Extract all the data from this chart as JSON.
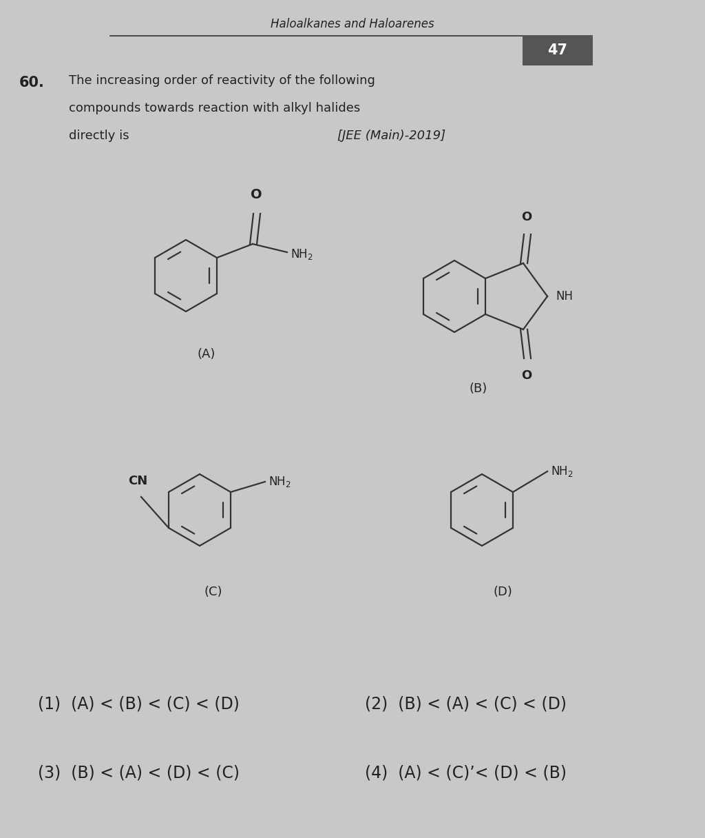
{
  "bg_color": "#c8c8c8",
  "page_color": "#d8d8d8",
  "title_line": "Haloalkanes and Haloarenes",
  "page_number": "47",
  "question_number": "60.",
  "question_text_line1": "The increasing order of reactivity of the following",
  "question_text_line2": "compounds towards reaction with alkyl halides",
  "question_text_line3": "directly is",
  "jee_ref": "[JEE (Main)-2019]",
  "label_A": "(A)",
  "label_B": "(B)",
  "label_C": "(C)",
  "label_D": "(D)",
  "option1": "(1)  (A) < (B) < (C) < (D)",
  "option2": "(2)  (B) < (A) < (C) < (D)",
  "option3": "(3)  (B) < (A) < (D) < (C)",
  "option4": "(4)  (A) < (C)’< (D) < (B)",
  "text_color": "#222222",
  "line_color": "#333333",
  "font_size_title": 12,
  "font_size_question": 13,
  "font_size_options": 17,
  "font_size_labels": 13,
  "font_size_struct": 11
}
